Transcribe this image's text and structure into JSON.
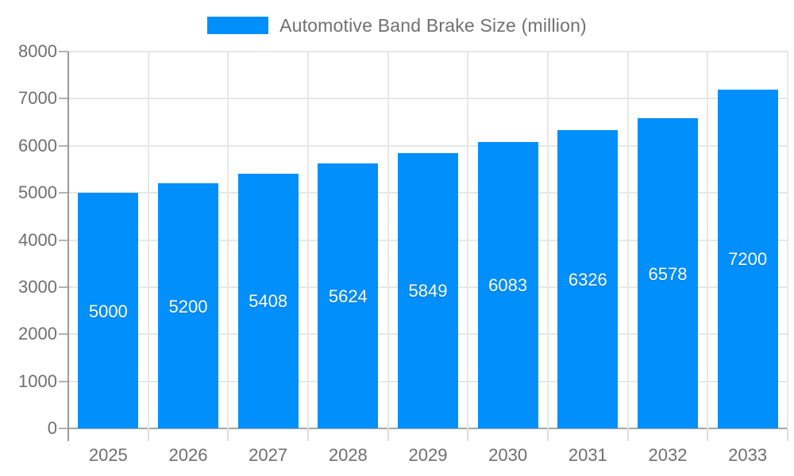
{
  "legend": {
    "label": "Automotive Band Brake Size (million)"
  },
  "chart_data": {
    "type": "bar",
    "title": "Automotive Band Brake Size (million)",
    "categories": [
      "2025",
      "2026",
      "2027",
      "2028",
      "2029",
      "2030",
      "2031",
      "2032",
      "2033"
    ],
    "values": [
      5000,
      5200,
      5408,
      5624,
      5849,
      6083,
      6326,
      6578,
      7200
    ],
    "xlabel": "",
    "ylabel": "",
    "ylim": [
      0,
      8000
    ],
    "ytick_step": 1000,
    "grid": true,
    "legend_position": "top",
    "colors": {
      "bar": "#008FFB",
      "bar_label_text": "#ffffff",
      "axis_text": "#6f6f6f",
      "legend_text": "#707070",
      "gridline": "#e7e7e7",
      "axis_line": "#9a9a9a",
      "zero_line": "#a6a6a6"
    }
  }
}
